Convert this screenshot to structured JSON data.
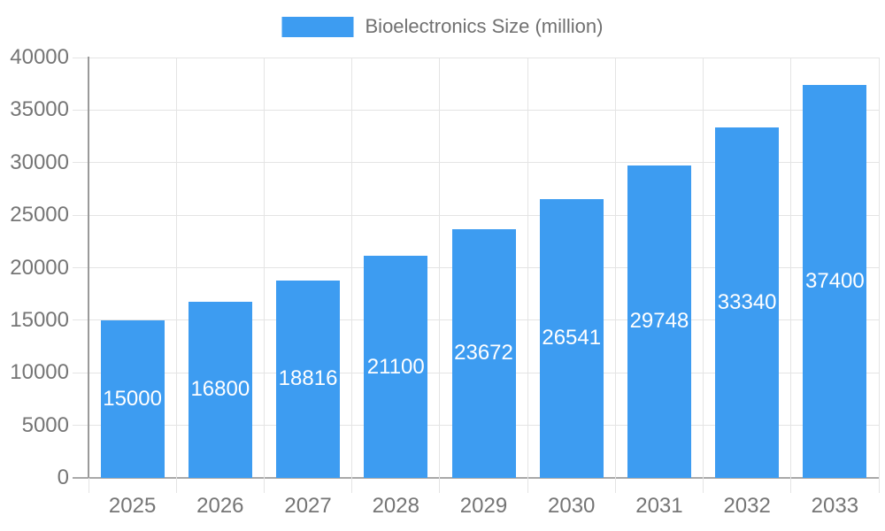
{
  "chart_data": {
    "type": "bar",
    "title": "Bioelectronics Size (million)",
    "legend_position": "top-center",
    "categories": [
      "2025",
      "2026",
      "2027",
      "2028",
      "2029",
      "2030",
      "2031",
      "2032",
      "2033"
    ],
    "series": [
      {
        "name": "Bioelectronics Size (million)",
        "values": [
          15000,
          16800,
          18816,
          21100,
          23672,
          26541,
          29748,
          33340,
          37400
        ]
      }
    ],
    "bar_value_labels_visible": true,
    "xlabel": "",
    "ylabel": "",
    "ylim": [
      0,
      40000
    ],
    "y_ticks": [
      0,
      5000,
      10000,
      15000,
      20000,
      25000,
      30000,
      35000,
      40000
    ],
    "grid": "horizontal-and-vertical"
  },
  "colors": {
    "bar": "#3d9cf1",
    "bar_label": "#ffffff",
    "axis_text": "#757575",
    "legend_text": "#707070",
    "gridline": "#e4e4e4",
    "baseline": "#a9a9a9",
    "axis_line": "#9a9a9a",
    "background": "#ffffff"
  }
}
